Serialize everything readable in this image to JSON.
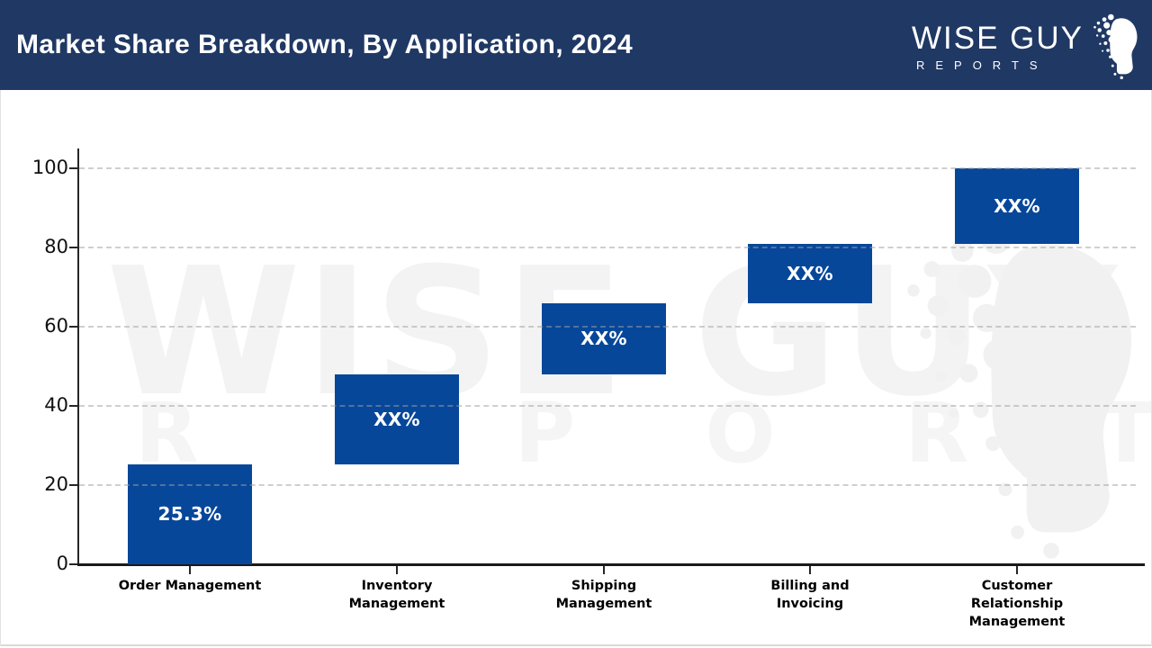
{
  "header": {
    "title": "Market Share Breakdown, By Application, 2024",
    "logo": {
      "line1": "WISE GUY",
      "line2": "REPORTS"
    }
  },
  "watermark": {
    "line1": "WISE GUY",
    "line2": "R E P O R T S"
  },
  "chart_data": {
    "type": "bar",
    "subtype": "waterfall",
    "title": "Market Share Breakdown, By Application, 2024",
    "categories": [
      "Order Management",
      "Inventory Management",
      "Shipping Management",
      "Billing and Invoicing",
      "Customer Relationship Management"
    ],
    "category_label_lines": [
      [
        "Order Management"
      ],
      [
        "Inventory",
        "Management"
      ],
      [
        "Shipping",
        "Management"
      ],
      [
        "Billing and",
        "Invoicing"
      ],
      [
        "Customer",
        "Relationship",
        "Management"
      ]
    ],
    "segments": [
      {
        "start": 0,
        "end": 25.3,
        "label": "25.3%"
      },
      {
        "start": 25.3,
        "end": 48,
        "label": "XX%"
      },
      {
        "start": 48,
        "end": 66,
        "label": "XX%"
      },
      {
        "start": 66,
        "end": 81,
        "label": "XX%"
      },
      {
        "start": 81,
        "end": 100,
        "label": "XX%"
      }
    ],
    "ylim": [
      0,
      100
    ],
    "yticks": [
      0,
      20,
      40,
      60,
      80,
      100
    ],
    "xlabel": "",
    "ylabel": "",
    "grid": "horizontal-dashed",
    "legend": "none"
  },
  "colors": {
    "header_bg": "#203864",
    "bar": "#07479a",
    "grid": "#d0d0d0",
    "axis": "#262626",
    "bar_label": "#ffffff",
    "watermark": "#f2f2f2"
  }
}
